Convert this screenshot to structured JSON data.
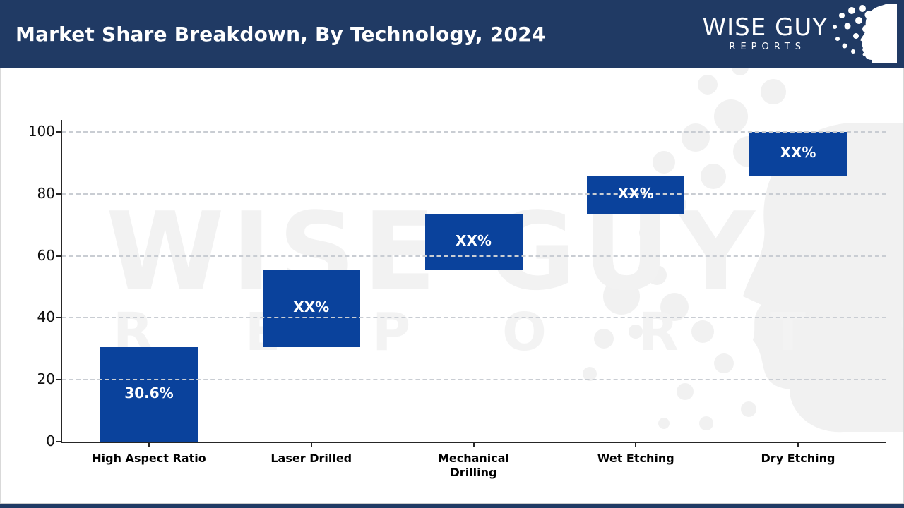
{
  "header": {
    "title": "Market Share Breakdown, By Technology, 2024",
    "logo_line1": "WISE GUY",
    "logo_line2": "REPORTS"
  },
  "watermark": {
    "line1": "WISE GUY",
    "line2": "R E P O R T S"
  },
  "chart_data": {
    "type": "bar",
    "variant": "waterfall",
    "title": "Market Share Breakdown, By Technology, 2024",
    "categories": [
      "High Aspect Ratio",
      "Laser Drilled",
      "Mechanical Drilling",
      "Wet Etching",
      "Dry Etching"
    ],
    "segments": [
      {
        "category": "High Aspect Ratio",
        "start": 0,
        "end": 30.6,
        "label": "30.6%"
      },
      {
        "category": "Laser Drilled",
        "start": 30.6,
        "end": 55.3,
        "label": "XX%"
      },
      {
        "category": "Mechanical Drilling",
        "start": 55.3,
        "end": 73.6,
        "label": "XX%"
      },
      {
        "category": "Wet Etching",
        "start": 73.6,
        "end": 85.9,
        "label": "XX%"
      },
      {
        "category": "Dry Etching",
        "start": 85.9,
        "end": 100,
        "label": "XX%"
      }
    ],
    "yticks": [
      0,
      20,
      40,
      60,
      80,
      100
    ],
    "ylim": [
      0,
      104
    ],
    "xlabel": "",
    "ylabel": "",
    "grid": "horizontal-dashed",
    "legend": "none"
  },
  "colors": {
    "header_bg": "#203a64",
    "bar": "#0a429c",
    "axis": "#262626",
    "grid": "#c9cdd3",
    "watermark": "#f2f2f2",
    "footer_bg": "#203a64"
  }
}
